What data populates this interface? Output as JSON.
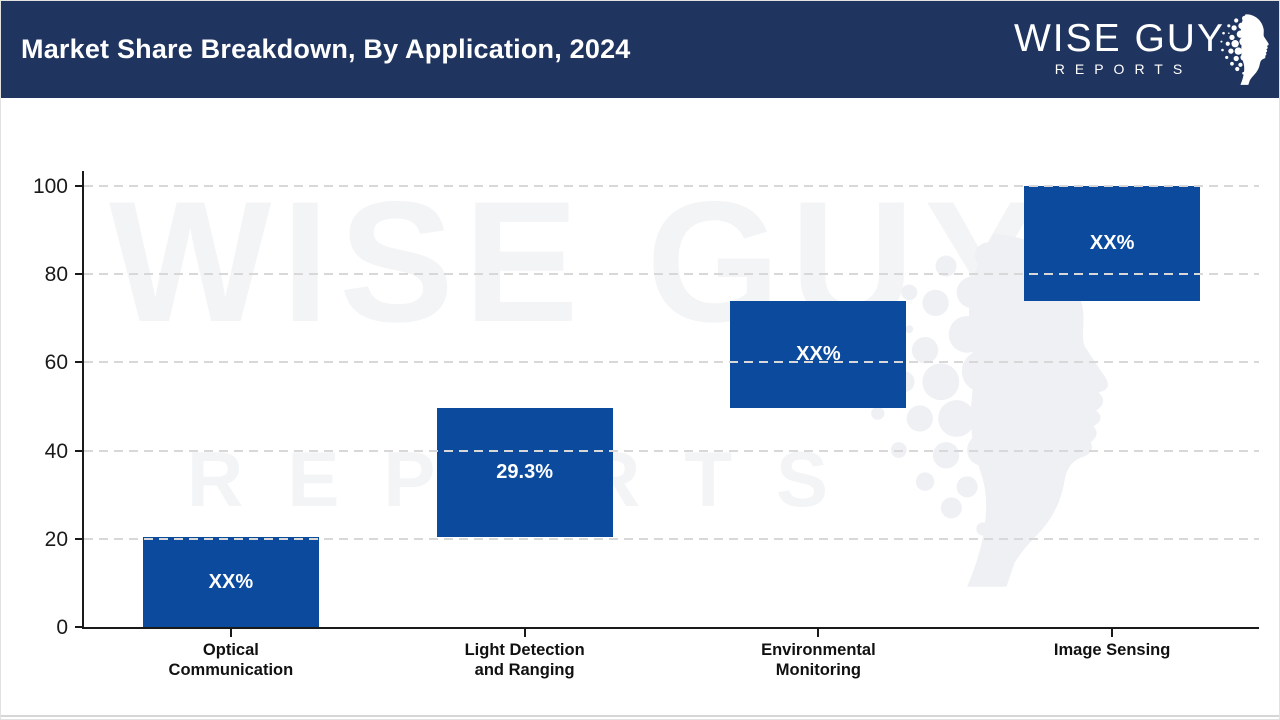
{
  "header": {
    "title": "Market Share Breakdown, By Application, 2024",
    "logo": {
      "wordmark": "WISE GUY",
      "subtext": "REPORTS",
      "head_icon": "wiseguy-dotted-head"
    }
  },
  "watermark": {
    "wordmark": "WISE GUY",
    "subtext": "REPORTS",
    "head_icon": "wiseguy-dotted-head"
  },
  "colors": {
    "header_bg": "#1f345f",
    "bar": "#0c4a9e",
    "bar_label": "#ffffff",
    "axis": "#1a1a1a",
    "grid": "#d8d8d8",
    "watermark_text": "#f3f4f6",
    "watermark_head": "#eef0f3"
  },
  "chart_data": {
    "type": "bar",
    "subtype": "waterfall",
    "title": "Market Share Breakdown, By Application, 2024",
    "categories": [
      "Optical Communication",
      "Light Detection and Ranging",
      "Environmental Monitoring",
      "Image Sensing"
    ],
    "category_label_lines": [
      [
        "Optical",
        "Communication"
      ],
      [
        "Light Detection",
        "and Ranging"
      ],
      [
        "Environmental",
        "Monitoring"
      ],
      [
        "Image Sensing"
      ]
    ],
    "series": [
      {
        "name": "Market Share (%)",
        "segments": [
          {
            "category": "Optical Communication",
            "start": 0,
            "end": 20.4,
            "value_label": "XX%"
          },
          {
            "category": "Light Detection and Ranging",
            "start": 20.4,
            "end": 49.7,
            "value_label": "29.3%",
            "value": 29.3
          },
          {
            "category": "Environmental Monitoring",
            "start": 49.7,
            "end": 74.0,
            "value_label": "XX%"
          },
          {
            "category": "Image Sensing",
            "start": 74.0,
            "end": 100.0,
            "value_label": "XX%"
          }
        ]
      }
    ],
    "ylim": [
      0,
      100
    ],
    "yticks": [
      0,
      20,
      40,
      60,
      80,
      100
    ],
    "xlabel": "",
    "ylabel": "",
    "grid": {
      "horizontal": true,
      "style": "dashed",
      "drawn_over_bars": true
    },
    "legend": "none"
  }
}
